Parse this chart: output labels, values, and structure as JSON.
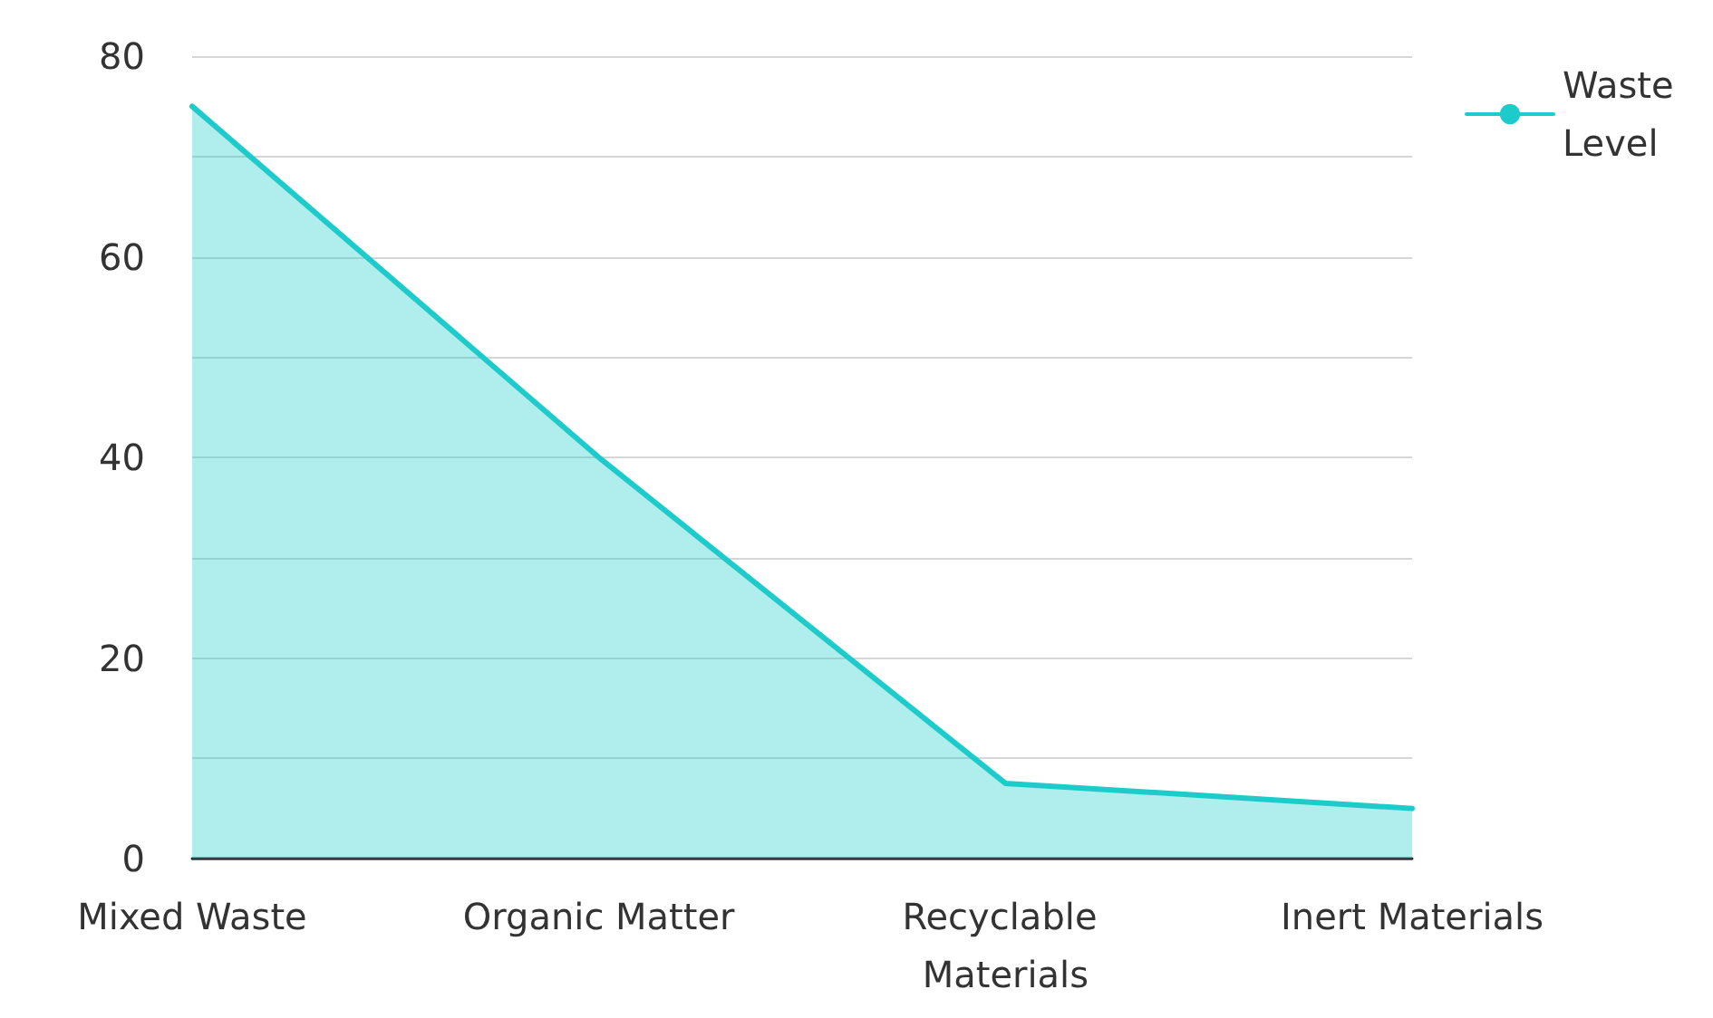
{
  "chart_data": {
    "type": "area",
    "categories": [
      "Mixed Waste",
      "Organic Matter",
      "Recyclable Materials",
      "Inert Materials"
    ],
    "series": [
      {
        "name": "Waste Level",
        "color": "#1ecbcb",
        "values": [
          75,
          40,
          7.5,
          5
        ]
      }
    ],
    "ylim": [
      0,
      80
    ],
    "yticks": [
      0,
      {
        "value": 10,
        "label": null
      },
      20,
      {
        "value": 30,
        "label": null
      },
      40,
      {
        "value": 50,
        "label": null
      },
      60,
      {
        "value": 70,
        "label": null
      },
      80
    ],
    "grid": "y",
    "legend": "top right",
    "marker": "none",
    "line_style": "solid"
  }
}
